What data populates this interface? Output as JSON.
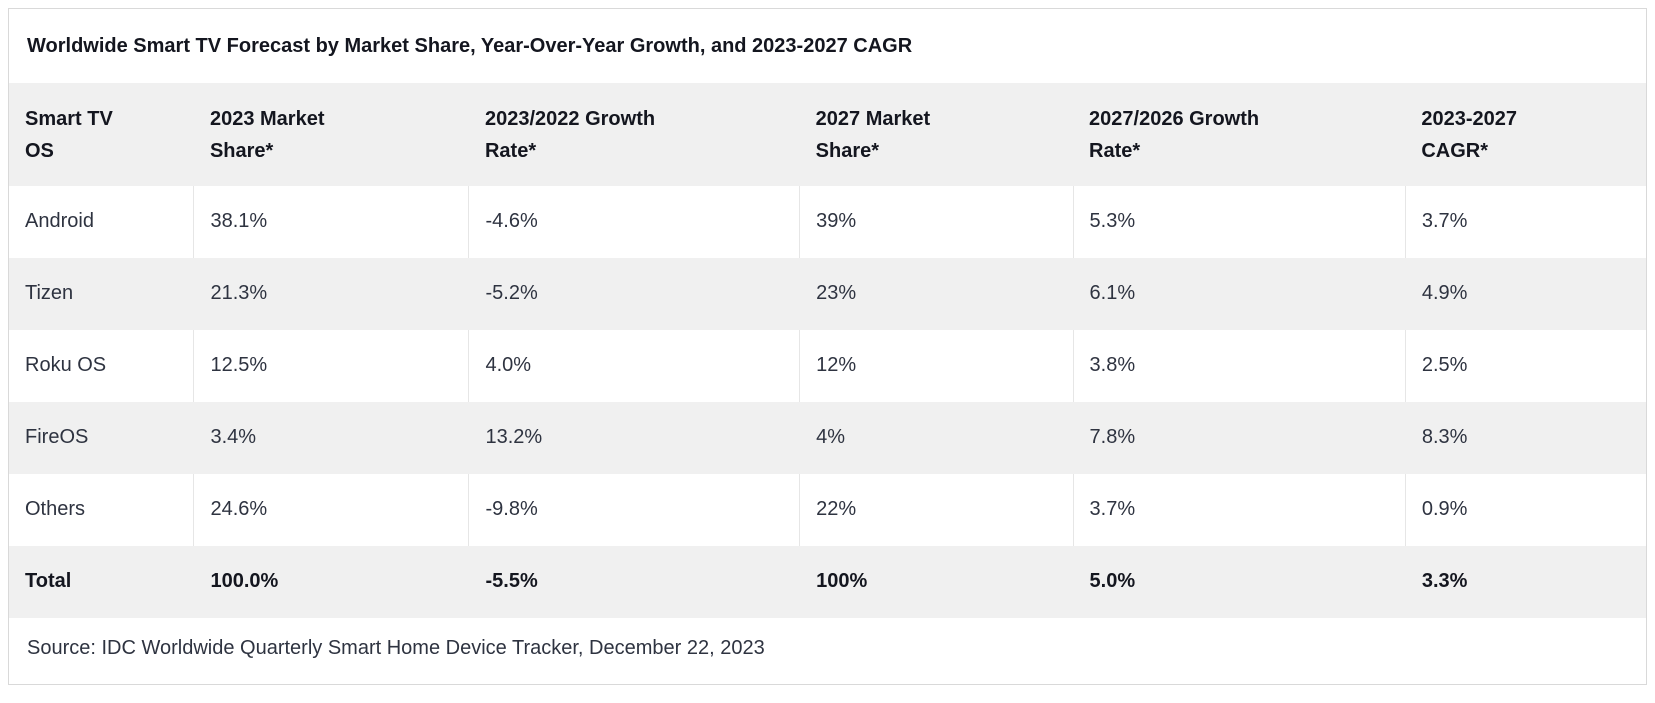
{
  "display": {
    "headers": [
      "Smart TV\nOS",
      "2023 Market\nShare*",
      "2023/2022 Growth\nRate*",
      "2027 Market\nShare*",
      "2027/2026 Growth\nRate*",
      "2023-2027\nCAGR*"
    ]
  },
  "chart_data": {
    "type": "table",
    "title": "Worldwide Smart TV Forecast by Market Share, Year-Over-Year Growth, and 2023-2027 CAGR",
    "columns": [
      "Smart TV OS",
      "2023 Market Share*",
      "2023/2022 Growth Rate*",
      "2027 Market Share*",
      "2027/2026 Growth Rate*",
      "2023-2027 CAGR*"
    ],
    "rows": [
      [
        "Android",
        "38.1%",
        "-4.6%",
        "39%",
        "5.3%",
        "3.7%"
      ],
      [
        "Tizen",
        "21.3%",
        "-5.2%",
        "23%",
        "6.1%",
        "4.9%"
      ],
      [
        "Roku OS",
        "12.5%",
        "4.0%",
        "12%",
        "3.8%",
        "2.5%"
      ],
      [
        "FireOS",
        "3.4%",
        "13.2%",
        "4%",
        "7.8%",
        "8.3%"
      ],
      [
        "Others",
        "24.6%",
        "-9.8%",
        "22%",
        "3.7%",
        "0.9%"
      ]
    ],
    "total_row": [
      "Total",
      "100.0%",
      "-5.5%",
      "100%",
      "5.0%",
      "3.3%"
    ],
    "footer": "Source: IDC Worldwide Quarterly Smart Home Device Tracker, December 22, 2023",
    "layout": {
      "striped": true,
      "header_background": "#f0f0f0",
      "stripe_background": "#f0f0f0",
      "border_color": "#d9d9d9",
      "divider_color": "#e6e6e6",
      "grid": "vertical-dividers-on-white-rows-only",
      "legend": "none"
    }
  },
  "colors": {
    "accent_text_dark": "#14161f",
    "body_text": "#2e3340",
    "row_stripe": "#f0f0f0",
    "outer_border": "#d9d9d9",
    "cell_divider": "#e6e6e6"
  }
}
